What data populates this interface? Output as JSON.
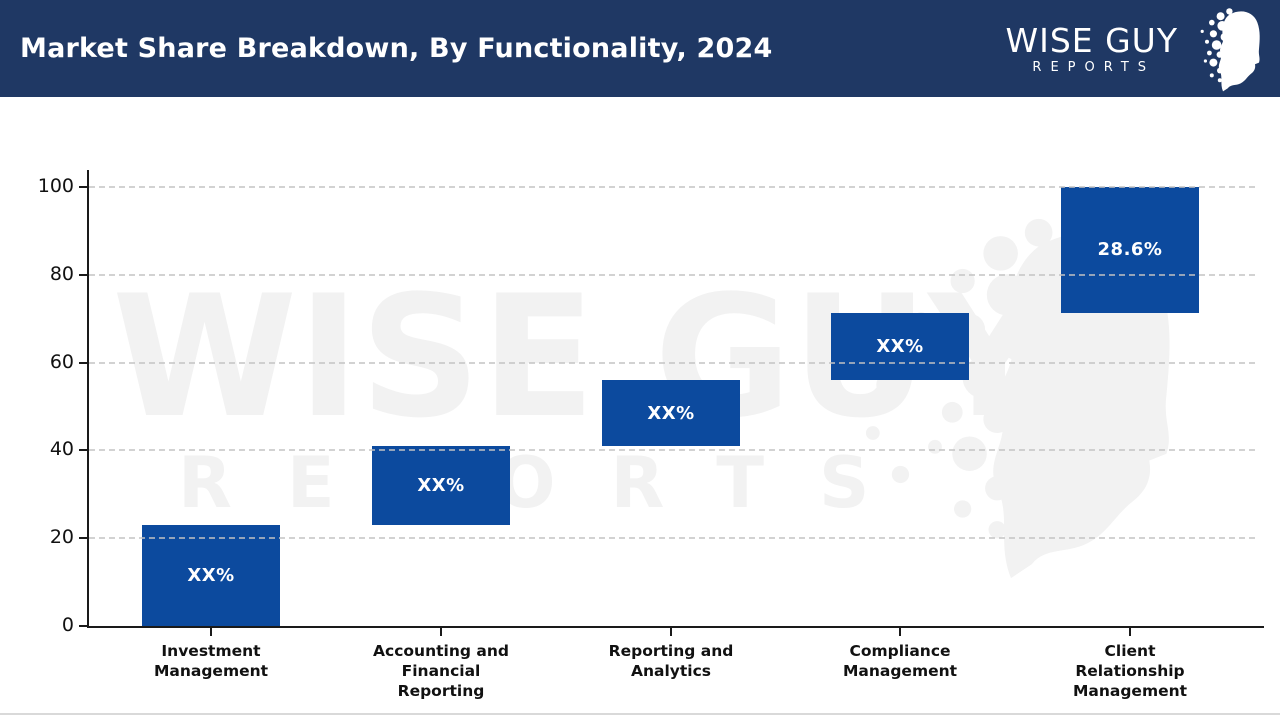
{
  "header": {
    "title": "Market Share Breakdown, By Functionality, 2024",
    "bg_color": "#1f3864",
    "logo": {
      "name": "WISE GUY",
      "sub": "REPORTS"
    }
  },
  "watermark": {
    "line1": "WISE GUY",
    "line2": "REPORTS"
  },
  "chart_data": {
    "type": "bar",
    "subtype": "floating-segment waterfall",
    "title": "Market Share Breakdown, By Functionality, 2024",
    "xlabel": "",
    "ylabel": "",
    "ylim": [
      0,
      105
    ],
    "yticks": [
      0,
      20,
      40,
      60,
      80,
      100
    ],
    "grid": "horizontal dashed gridlines at yticks, drawn over bars",
    "legend": null,
    "bar_color": "#0c4a9e",
    "value_label_color": "#ffffff",
    "categories": [
      [
        "Investment",
        "Management"
      ],
      [
        "Accounting and",
        "Financial",
        "Reporting"
      ],
      [
        "Reporting and",
        "Analytics"
      ],
      [
        "Compliance",
        "Management"
      ],
      [
        "Client",
        "Relationship",
        "Management"
      ]
    ],
    "segments": [
      {
        "start": 0,
        "end": 23,
        "label": "XX%"
      },
      {
        "start": 23,
        "end": 41,
        "label": "XX%"
      },
      {
        "start": 41,
        "end": 56,
        "label": "XX%"
      },
      {
        "start": 56,
        "end": 71.4,
        "label": "XX%"
      },
      {
        "start": 71.4,
        "end": 100,
        "label": "28.6%"
      }
    ]
  }
}
